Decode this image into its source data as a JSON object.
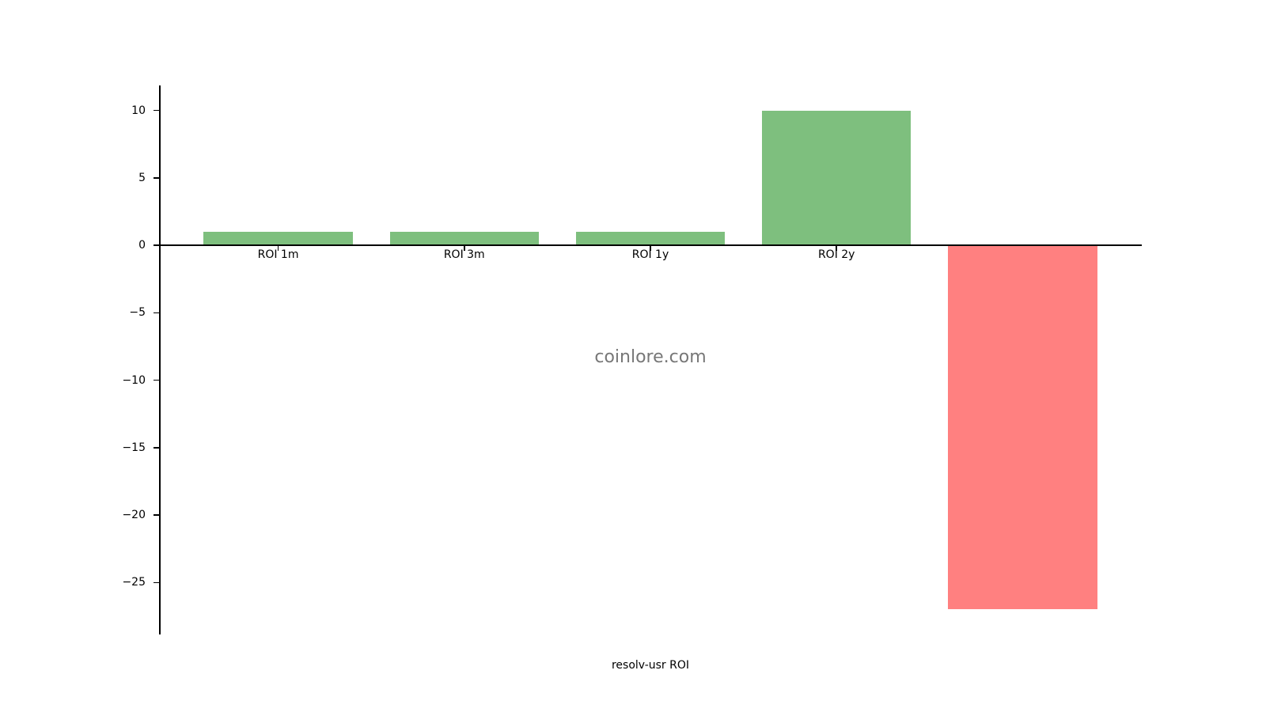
{
  "page": {
    "background": "#ffffff"
  },
  "watermark": {
    "text": "coinlore.com",
    "color": "#777777"
  },
  "chart_data": {
    "type": "bar",
    "title": "resolv-usr ROI",
    "categories": [
      "ROI 1m",
      "ROI 3m",
      "ROI 1y",
      "ROI 2y",
      ""
    ],
    "values": [
      1,
      1,
      1,
      10,
      -27
    ],
    "series": [
      {
        "name": "ROI",
        "values": [
          1,
          1,
          1,
          10,
          -27
        ]
      }
    ],
    "positive_color": "#7ebf7e",
    "negative_color": "#ff8080",
    "axis_color": "#000000",
    "ylim": [
      -28.85,
      11.85
    ],
    "yticks": [
      {
        "value": 10,
        "label": "10"
      },
      {
        "value": 5,
        "label": "5"
      },
      {
        "value": 0,
        "label": "0"
      },
      {
        "value": -5,
        "label": "−5"
      },
      {
        "value": -10,
        "label": "−10"
      },
      {
        "value": -15,
        "label": "−15"
      },
      {
        "value": -20,
        "label": "−20"
      },
      {
        "value": -25,
        "label": "−25"
      }
    ],
    "xlabel": "",
    "ylabel": "",
    "legend": null,
    "grid": false,
    "notes": "x-axis spine drawn at y=0; fifth bar has no category label"
  }
}
